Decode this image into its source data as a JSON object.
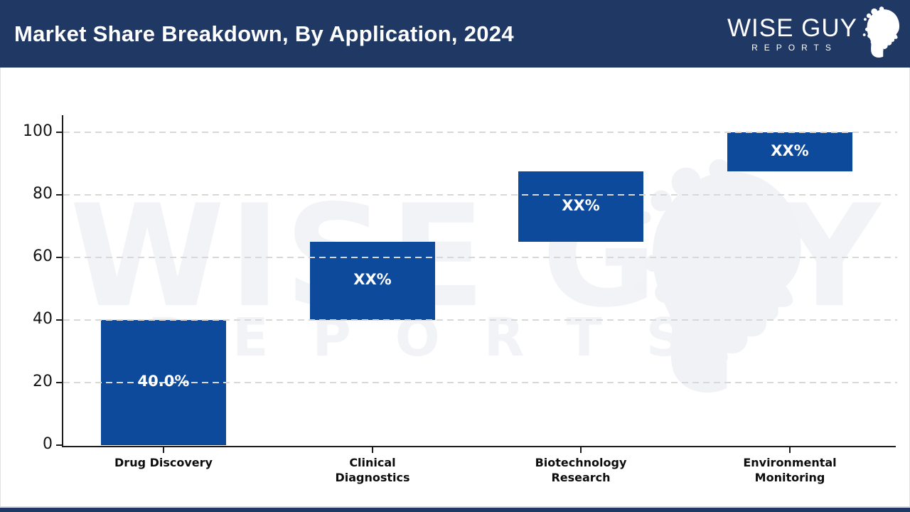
{
  "header": {
    "title": "Market Share Breakdown, By Application, 2024",
    "logo": {
      "wordmark": "WISE GUY",
      "subtext": "REPORTS",
      "head_icon": "dotted-head-profile"
    }
  },
  "watermark": {
    "wordmark": "WISE GUY",
    "subtext": "REPORTS",
    "head_icon": "dotted-head-profile"
  },
  "colors": {
    "header_bg": "#1f3864",
    "footer_bg": "#1f3864",
    "bar": "#0d4a9c",
    "grid": "#d8d8d8",
    "bar_label": "#ffffff",
    "watermark": "#f2f3f6"
  },
  "chart_data": {
    "type": "bar",
    "subtype": "waterfall",
    "title": "Market Share Breakdown, By Application, 2024",
    "categories": [
      "Drug Discovery",
      "Clinical Diagnostics",
      "Biotechnology Research",
      "Environmental Monitoring"
    ],
    "category_lines": [
      [
        "Drug Discovery"
      ],
      [
        "Clinical",
        "Diagnostics"
      ],
      [
        "Biotechnology",
        "Research"
      ],
      [
        "Environmental",
        "Monitoring"
      ]
    ],
    "segments": [
      {
        "category": "Drug Discovery",
        "start": 0,
        "end": 40,
        "label": "40.0%"
      },
      {
        "category": "Clinical Diagnostics",
        "start": 40,
        "end": 65,
        "label": "XX%"
      },
      {
        "category": "Biotechnology Research",
        "start": 65,
        "end": 87.5,
        "label": "XX%"
      },
      {
        "category": "Environmental Monitoring",
        "start": 87.5,
        "end": 100,
        "label": "XX%"
      }
    ],
    "xlabel": "",
    "ylabel": "",
    "ylim": [
      0,
      100
    ],
    "yticks": [
      0,
      20,
      40,
      60,
      80,
      100
    ],
    "grid": "horizontal-dashed",
    "legend": "none"
  }
}
